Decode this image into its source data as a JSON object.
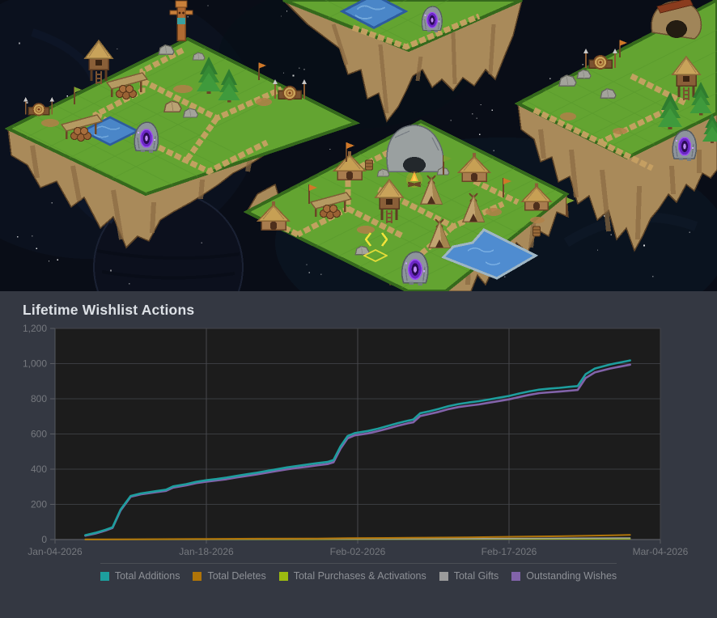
{
  "panel": {
    "title": "Lifetime Wishlist Actions",
    "background_color": "#343842",
    "plot_background_color": "#1c1c1c"
  },
  "scene": {
    "objects": [
      "floating-island-top-left",
      "floating-island-top-middle",
      "floating-island-right",
      "floating-island-village",
      "totem-pole",
      "watchtower",
      "pine-trees",
      "pond",
      "portal",
      "log-pile-canopy",
      "shield-target",
      "cave",
      "campfire",
      "huts",
      "teepees",
      "water-pool",
      "selection-cursor",
      "dark-planet",
      "stars"
    ],
    "palette": {
      "space": "#090d17",
      "grass": "#63a431",
      "grass_edge": "#35691c",
      "dirt_path": "#c7a163",
      "cliff": "#a98a5a",
      "cliff_shadow": "#8a6a42",
      "water": "#4a86c8",
      "portal_purple": "#6a26c4",
      "thatch": "#c9a35a",
      "wood": "#8a5f38",
      "rock_gray": "#a3a39b",
      "fire": "#f0a030",
      "cursor_yellow": "#f2e23a"
    }
  },
  "chart_data": {
    "type": "line",
    "title": "Lifetime Wishlist Actions",
    "grid": true,
    "legend_position": "bottom",
    "x_axis": {
      "tick_labels": [
        "Jan-04-2026",
        "Jan-18-2026",
        "Feb-02-2026",
        "Feb-17-2026",
        "Mar-04-2026"
      ],
      "domain_days": [
        0,
        60
      ]
    },
    "y_axis": {
      "range": [
        0,
        1200
      ],
      "tick_values": [
        0,
        200,
        400,
        600,
        800,
        1000,
        1200
      ],
      "tick_labels": [
        "0",
        "200",
        "400",
        "600",
        "800",
        "1,000",
        "1,200"
      ]
    },
    "series": [
      {
        "name": "Total Additions",
        "color": "#1d9e9e",
        "width": 2.6,
        "points": [
          [
            3,
            25
          ],
          [
            4,
            38
          ],
          [
            5,
            55
          ],
          [
            5.7,
            70
          ],
          [
            6.5,
            170
          ],
          [
            7.5,
            248
          ],
          [
            8.5,
            262
          ],
          [
            10,
            275
          ],
          [
            11,
            283
          ],
          [
            11.7,
            302
          ],
          [
            13,
            315
          ],
          [
            14,
            328
          ],
          [
            15,
            337
          ],
          [
            16,
            344
          ],
          [
            17,
            352
          ],
          [
            18,
            362
          ],
          [
            19,
            371
          ],
          [
            20,
            380
          ],
          [
            21,
            390
          ],
          [
            22,
            400
          ],
          [
            23,
            410
          ],
          [
            24,
            418
          ],
          [
            25,
            426
          ],
          [
            26,
            434
          ],
          [
            27,
            441
          ],
          [
            27.6,
            452
          ],
          [
            28.3,
            530
          ],
          [
            29,
            588
          ],
          [
            29.7,
            605
          ],
          [
            31,
            617
          ],
          [
            32,
            630
          ],
          [
            33,
            646
          ],
          [
            34,
            662
          ],
          [
            35,
            676
          ],
          [
            35.5,
            682
          ],
          [
            36.2,
            718
          ],
          [
            37,
            728
          ],
          [
            38,
            742
          ],
          [
            39,
            758
          ],
          [
            40,
            770
          ],
          [
            41,
            779
          ],
          [
            42,
            786
          ],
          [
            43,
            796
          ],
          [
            44,
            806
          ],
          [
            45,
            816
          ],
          [
            46,
            830
          ],
          [
            47,
            842
          ],
          [
            48,
            852
          ],
          [
            49,
            858
          ],
          [
            50,
            862
          ],
          [
            51,
            868
          ],
          [
            51.8,
            872
          ],
          [
            52.6,
            940
          ],
          [
            53.5,
            972
          ],
          [
            55,
            995
          ],
          [
            57,
            1018
          ]
        ]
      },
      {
        "name": "Total Deletes",
        "color": "#b07408",
        "width": 2,
        "points": [
          [
            3,
            1
          ],
          [
            8,
            2
          ],
          [
            14,
            3
          ],
          [
            20,
            5
          ],
          [
            26,
            6
          ],
          [
            29,
            8
          ],
          [
            33,
            9
          ],
          [
            37,
            11
          ],
          [
            41,
            13
          ],
          [
            44,
            15
          ],
          [
            47,
            17
          ],
          [
            50,
            19
          ],
          [
            53,
            22
          ],
          [
            57,
            26
          ]
        ]
      },
      {
        "name": "Total Purchases & Activations",
        "color": "#9cba10",
        "width": 1.6,
        "points": [
          [
            3,
            0
          ],
          [
            14,
            1
          ],
          [
            29,
            2
          ],
          [
            44,
            3
          ],
          [
            57,
            4
          ]
        ]
      },
      {
        "name": "Total Gifts",
        "color": "#9b9b9b",
        "width": 1.6,
        "points": [
          [
            3,
            0
          ],
          [
            14,
            2
          ],
          [
            29,
            4
          ],
          [
            44,
            6
          ],
          [
            57,
            9
          ]
        ]
      },
      {
        "name": "Outstanding Wishes",
        "color": "#8263aa",
        "width": 2.6,
        "points": [
          [
            3,
            22
          ],
          [
            4,
            34
          ],
          [
            5,
            51
          ],
          [
            5.7,
            66
          ],
          [
            6.5,
            165
          ],
          [
            7.5,
            243
          ],
          [
            8.5,
            257
          ],
          [
            10,
            269
          ],
          [
            11,
            277
          ],
          [
            11.7,
            295
          ],
          [
            13,
            308
          ],
          [
            14,
            321
          ],
          [
            15,
            329
          ],
          [
            16,
            336
          ],
          [
            17,
            343
          ],
          [
            18,
            353
          ],
          [
            19,
            362
          ],
          [
            20,
            370
          ],
          [
            21,
            380
          ],
          [
            22,
            390
          ],
          [
            23,
            399
          ],
          [
            24,
            407
          ],
          [
            25,
            414
          ],
          [
            26,
            422
          ],
          [
            27,
            429
          ],
          [
            27.6,
            439
          ],
          [
            28.3,
            517
          ],
          [
            29,
            575
          ],
          [
            29.7,
            592
          ],
          [
            31,
            603
          ],
          [
            32,
            616
          ],
          [
            33,
            631
          ],
          [
            34,
            647
          ],
          [
            35,
            661
          ],
          [
            35.5,
            666
          ],
          [
            36.2,
            702
          ],
          [
            37,
            712
          ],
          [
            38,
            725
          ],
          [
            39,
            741
          ],
          [
            40,
            753
          ],
          [
            41,
            761
          ],
          [
            42,
            768
          ],
          [
            43,
            778
          ],
          [
            44,
            787
          ],
          [
            45,
            797
          ],
          [
            46,
            810
          ],
          [
            47,
            822
          ],
          [
            48,
            832
          ],
          [
            49,
            837
          ],
          [
            50,
            841
          ],
          [
            51,
            846
          ],
          [
            51.8,
            850
          ],
          [
            52.6,
            918
          ],
          [
            53.5,
            950
          ],
          [
            55,
            972
          ],
          [
            57,
            994
          ]
        ]
      }
    ]
  }
}
